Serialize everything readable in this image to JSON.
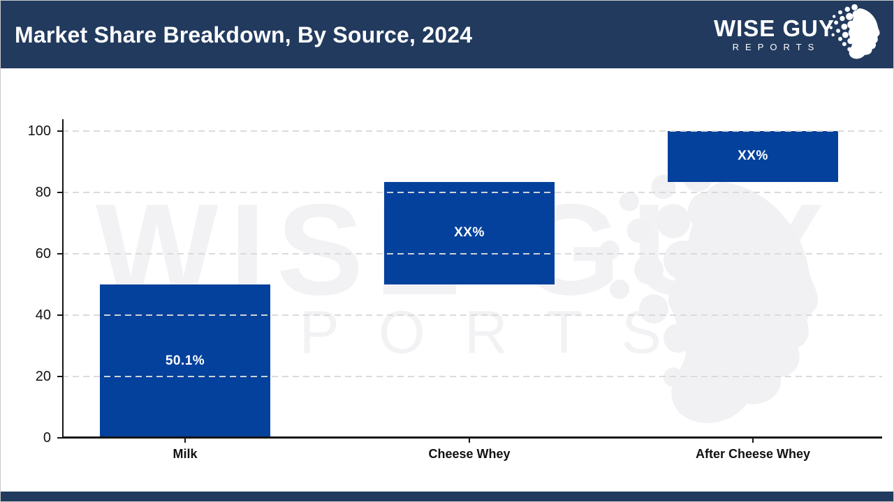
{
  "header": {
    "title": "Market Share Breakdown, By Source, 2024",
    "logo": {
      "line1": "WISE GUY",
      "line2": "REPORTS"
    }
  },
  "watermark": {
    "line1": "WISE GUY",
    "line2": "REPORTS"
  },
  "chart_data": {
    "type": "bar",
    "subtype": "floating-segment-waterfall",
    "title": "Market Share Breakdown, By Source, 2024",
    "categories": [
      "Milk",
      "Cheese Whey",
      "After Cheese Whey"
    ],
    "bars": [
      {
        "category": "Milk",
        "start": 0,
        "end": 50.1,
        "label": "50.1%"
      },
      {
        "category": "Cheese Whey",
        "start": 50.1,
        "end": 83.5,
        "label": "XX%"
      },
      {
        "category": "After Cheese Whey",
        "start": 83.5,
        "end": 100,
        "label": "XX%"
      }
    ],
    "ylim": [
      0,
      100
    ],
    "yticks": [
      0,
      20,
      40,
      60,
      80,
      100
    ],
    "xlabel": "",
    "ylabel": "",
    "grid": "horizontal-dashed",
    "legend": "none"
  },
  "colors": {
    "header_bg": "#223a5e",
    "footer_bg": "#223a5e",
    "bar": "#04419c",
    "grid": "#d9d9d9",
    "axis": "#151515",
    "watermark": "#f2f2f4",
    "page_bg": "#ffffff",
    "title_text": "#ffffff"
  }
}
